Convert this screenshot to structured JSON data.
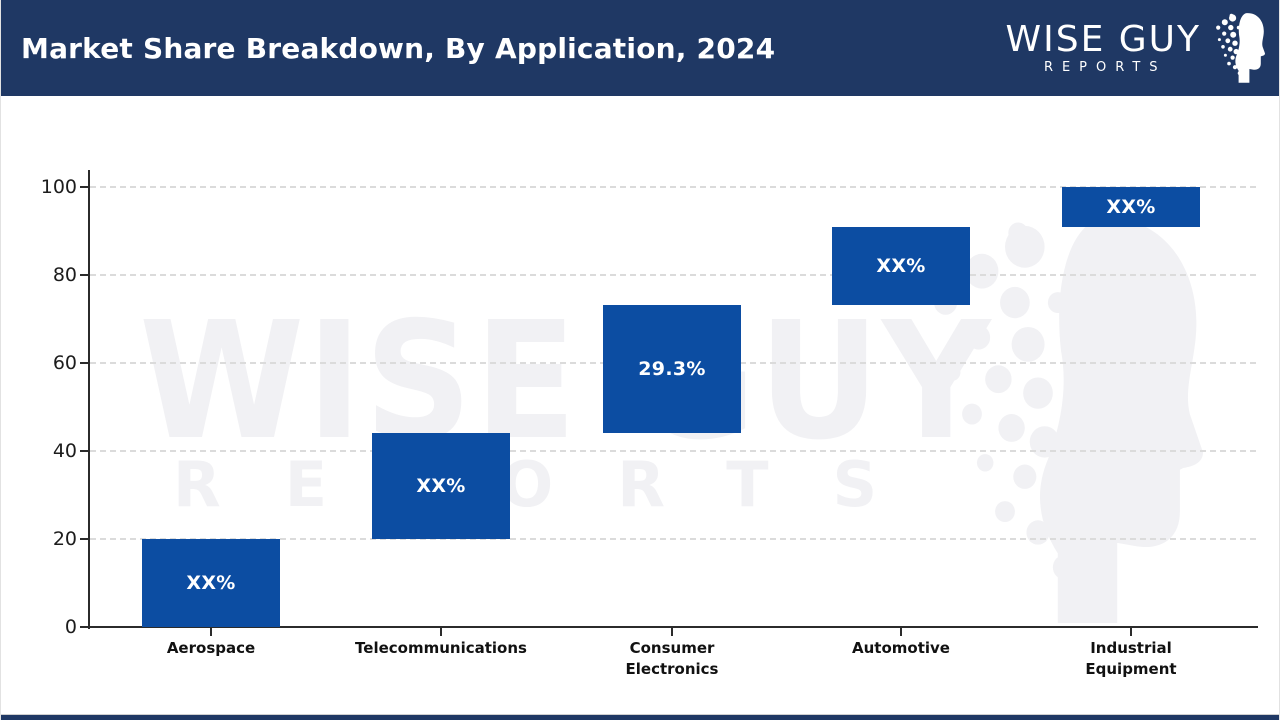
{
  "header": {
    "title": "Market Share Breakdown, By Application, 2024",
    "logo": {
      "name": "WISE GUY",
      "sub": "REPORTS"
    }
  },
  "watermark": {
    "name": "WISE GUY",
    "sub": "REPORTS"
  },
  "colors": {
    "header_bg": "#1f3864",
    "footer_bar": "#1f3864",
    "bar": "#0c4da2",
    "bar_label": "#ffffff",
    "gridline": "#dbdbdb",
    "axis": "#2b2b2b",
    "watermark": "#f1f1f4"
  },
  "chart_data": {
    "type": "bar",
    "subtype": "floating waterfall-style market share bars",
    "title": "Market Share Breakdown, By Application, 2024",
    "categories": [
      "Aerospace",
      "Telecommunications",
      "Consumer Electronics",
      "Automotive",
      "Industrial Equipment"
    ],
    "categories_display": [
      "Aerospace",
      "Telecommunications",
      "Consumer\nElectronics",
      "Automotive",
      "Industrial\nEquipment"
    ],
    "bars": [
      {
        "category": "Aerospace",
        "start": 0,
        "end": 20,
        "value_label": "XX%"
      },
      {
        "category": "Telecommunications",
        "start": 20,
        "end": 44,
        "value_label": "XX%"
      },
      {
        "category": "Consumer Electronics",
        "start": 44,
        "end": 73.3,
        "value_label": "29.3%"
      },
      {
        "category": "Automotive",
        "start": 73.3,
        "end": 90.9,
        "value_label": "XX%"
      },
      {
        "category": "Industrial Equipment",
        "start": 90.9,
        "end": 100,
        "value_label": "XX%"
      }
    ],
    "xlabel": "",
    "ylabel": "",
    "ylim": [
      0,
      100
    ],
    "yticks": [
      0,
      20,
      40,
      60,
      80,
      100
    ],
    "grid": "horizontal dashed",
    "legend": "none"
  }
}
